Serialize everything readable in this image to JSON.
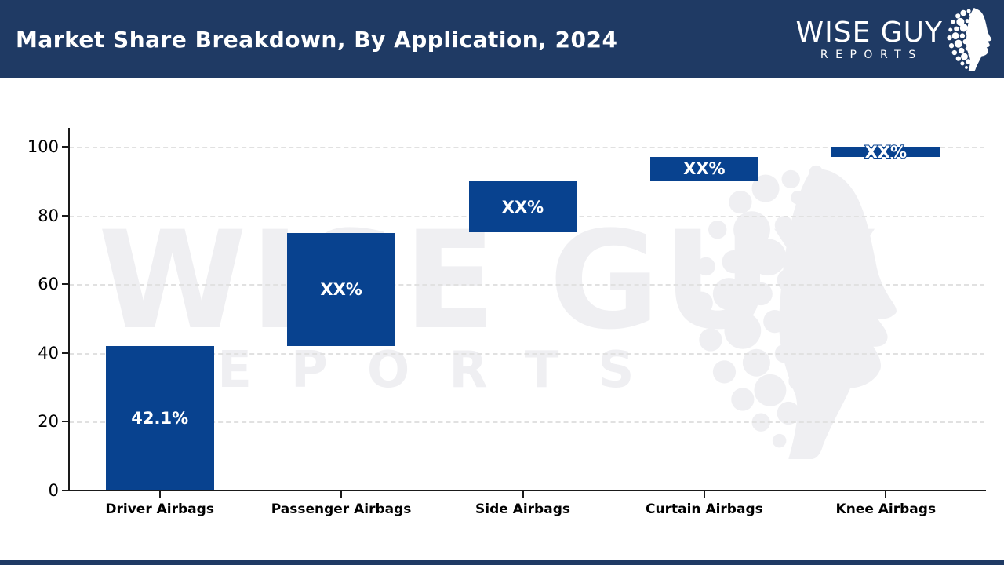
{
  "header": {
    "title": "Market Share Breakdown, By Application, 2024",
    "background_color": "#1f3a64",
    "logo": {
      "line1": "WISE GUY",
      "line2": "REPORTS"
    }
  },
  "watermark": {
    "line1": "WISE GUY",
    "line2": "REPORTS"
  },
  "chart_data": {
    "type": "bar",
    "subtype": "waterfall",
    "title": "Market Share Breakdown, By Application, 2024",
    "categories": [
      "Driver Airbags",
      "Passenger Airbags",
      "Side Airbags",
      "Curtain Airbags",
      "Knee Airbags"
    ],
    "segments": [
      {
        "category": "Driver Airbags",
        "start": 0,
        "end": 42.1,
        "label": "42.1%"
      },
      {
        "category": "Passenger Airbags",
        "start": 42.1,
        "end": 75,
        "label": "XX%"
      },
      {
        "category": "Side Airbags",
        "start": 75,
        "end": 90,
        "label": "XX%"
      },
      {
        "category": "Curtain Airbags",
        "start": 90,
        "end": 97,
        "label": "XX%"
      },
      {
        "category": "Knee Airbags",
        "start": 97,
        "end": 100,
        "label": "XX%"
      }
    ],
    "y_ticks": [
      0,
      20,
      40,
      60,
      80,
      100
    ],
    "ylim": [
      0,
      105
    ],
    "xlabel": "",
    "ylabel": "",
    "bar_color": "#08428f",
    "grid": "horizontal-dashed",
    "legend": "none"
  }
}
